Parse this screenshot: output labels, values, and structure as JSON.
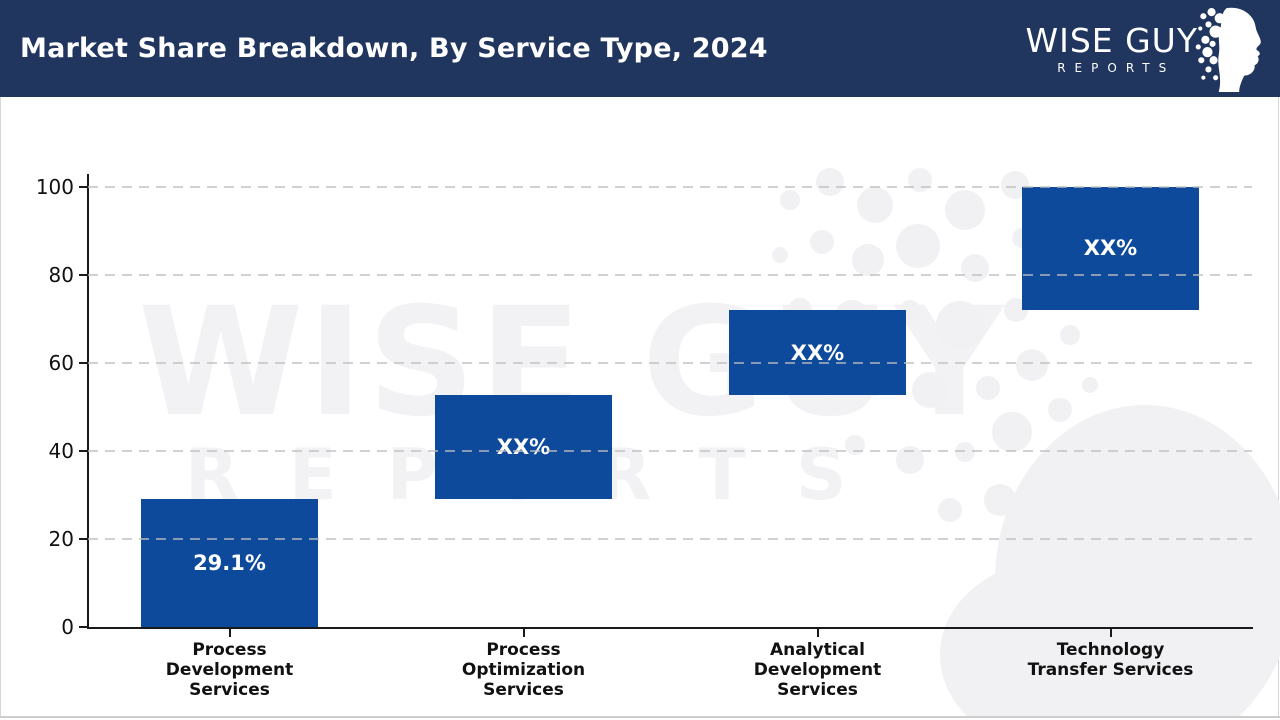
{
  "header": {
    "title": "Market Share Breakdown, By Service Type, 2024",
    "logo": {
      "brand_top": "WISE GUY",
      "brand_bottom": "REPORTS"
    }
  },
  "watermark": {
    "text_top": "WISE GUY",
    "text_bottom": "REPORTS"
  },
  "colors": {
    "header_bg": "#20365f",
    "bar_fill": "#0d4a9c",
    "bar_label_text": "#ffffff",
    "watermark": "#f2f2f4"
  },
  "chart_data": {
    "type": "bar",
    "subtype": "waterfall",
    "title": "Market Share Breakdown, By Service Type, 2024",
    "xlabel": "",
    "ylabel": "",
    "ylim": [
      0,
      105
    ],
    "yticks": [
      0,
      20,
      40,
      60,
      80,
      100
    ],
    "grid": "horizontal-dashed",
    "legend": "none",
    "categories": [
      {
        "name": "Process Development Services",
        "label_lines": [
          "Process",
          "Development",
          "Services"
        ]
      },
      {
        "name": "Process Optimization Services",
        "label_lines": [
          "Process",
          "Optimization",
          "Services"
        ]
      },
      {
        "name": "Analytical Development Services",
        "label_lines": [
          "Analytical",
          "Development",
          "Services"
        ]
      },
      {
        "name": "Technology Transfer Services",
        "label_lines": [
          "Technology",
          "Transfer Services"
        ]
      }
    ],
    "bars": [
      {
        "category": "Process Development Services",
        "display_label": "29.1%",
        "value": 29.1,
        "start": 0,
        "end": 29.1
      },
      {
        "category": "Process Optimization Services",
        "display_label": "XX%",
        "value": 23.5,
        "start": 29.1,
        "end": 52.6
      },
      {
        "category": "Analytical Development Services",
        "display_label": "XX%",
        "value": 19.3,
        "start": 52.6,
        "end": 71.9
      },
      {
        "category": "Technology Transfer Services",
        "display_label": "XX%",
        "value": 28.1,
        "start": 71.9,
        "end": 100
      }
    ]
  }
}
